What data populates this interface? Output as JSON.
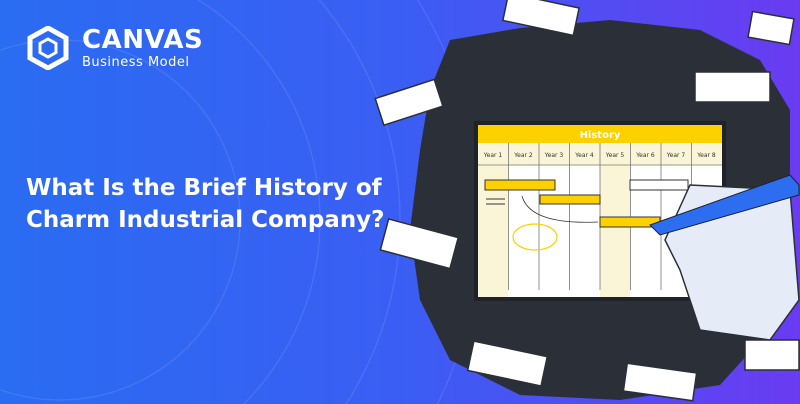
{
  "brand": {
    "name": "CANVAS",
    "subtitle": "Business Model"
  },
  "headline": "What Is the Brief History of Charm Industrial Company?",
  "illustration": {
    "board_title": "History",
    "years": [
      "Year 1",
      "Year 2",
      "Year 3",
      "Year 4",
      "Year 5",
      "Year 6",
      "Year 7",
      "Year 8"
    ]
  },
  "colors": {
    "background_left": "#2a6cf2",
    "background_right": "#6a3bf2",
    "accent_yellow": "#fdd000",
    "wall": "#2b3038",
    "marker": "#2d6df0"
  }
}
